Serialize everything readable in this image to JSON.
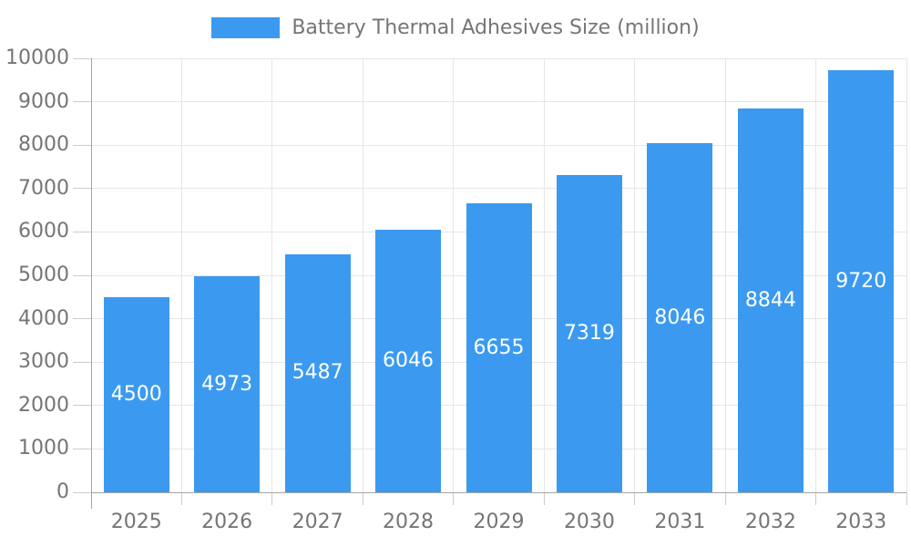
{
  "chart_data": {
    "type": "bar",
    "title": "Battery Thermal Adhesives Size (million)",
    "categories": [
      "2025",
      "2026",
      "2027",
      "2028",
      "2029",
      "2030",
      "2031",
      "2032",
      "2033"
    ],
    "series": [
      {
        "name": "Battery Thermal Adhesives Size (million)",
        "values": [
          4500,
          4973,
          5487,
          6046,
          6655,
          7319,
          8046,
          8844,
          9720
        ]
      }
    ],
    "xlabel": "",
    "ylabel": "",
    "ylim": [
      0,
      10000
    ],
    "ytick_step": 1000,
    "ytick_labels": [
      "0",
      "1000",
      "2000",
      "3000",
      "4000",
      "5000",
      "6000",
      "7000",
      "8000",
      "9000",
      "10000"
    ],
    "grid": true,
    "legend_position": "top-center",
    "bar_value_labels_visible": true,
    "colors": {
      "bar": "#3b9af0",
      "bar_label": "#ffffff",
      "axis_text": "#757575",
      "grid_line": "#e6e6e6",
      "tick_line": "#cccccc",
      "axis_line": "#a6a6a6",
      "background": "#ffffff"
    }
  }
}
